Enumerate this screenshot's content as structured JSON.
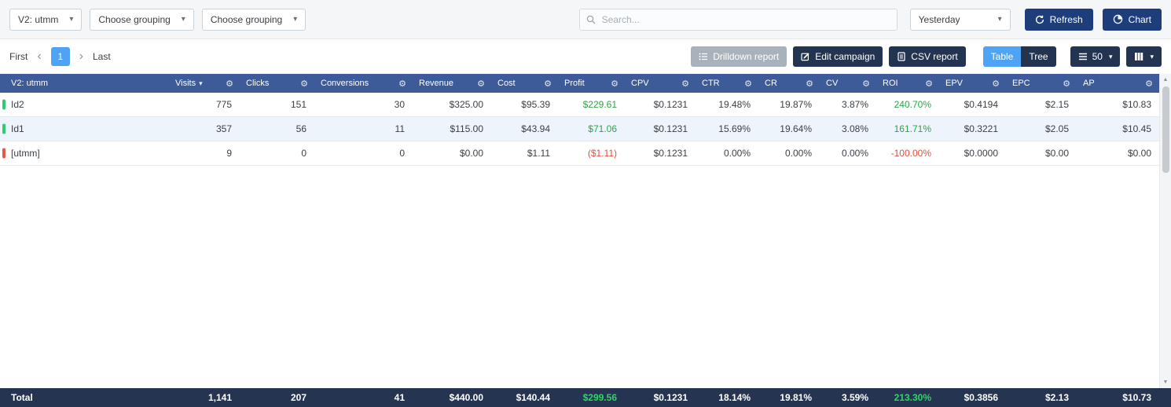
{
  "toolbar": {
    "campaign_select": "V2: utmm",
    "grouping_1": "Choose grouping",
    "grouping_2": "Choose grouping",
    "search_placeholder": "Search...",
    "date_range": "Yesterday",
    "refresh": "Refresh",
    "chart": "Chart"
  },
  "pagination": {
    "first": "First",
    "page": "1",
    "last": "Last"
  },
  "actions": {
    "drilldown": "Drilldown report",
    "edit_campaign": "Edit campaign",
    "csv_report": "CSV report",
    "table": "Table",
    "tree": "Tree",
    "rows_per_page": "50"
  },
  "icons": {
    "caret_down": "▾",
    "gear": "⚙",
    "sort_desc": "▾",
    "chevron_left": "‹",
    "chevron_right": "›",
    "scroll_up": "▲",
    "scroll_down": "▼"
  },
  "colors": {
    "header_blue": "#3d5a99",
    "total_navy": "#253450",
    "accent_blue": "#4fa3f5",
    "positive_green": "#28a745",
    "negative_red": "#e74c3c"
  },
  "table": {
    "name_header": "V2: utmm",
    "columns": [
      {
        "label": "Visits",
        "sort": true
      },
      {
        "label": "Clicks"
      },
      {
        "label": "Conversions"
      },
      {
        "label": "Revenue"
      },
      {
        "label": "Cost"
      },
      {
        "label": "Profit"
      },
      {
        "label": "CPV"
      },
      {
        "label": "CTR"
      },
      {
        "label": "CR"
      },
      {
        "label": "CV"
      },
      {
        "label": "ROI"
      },
      {
        "label": "EPV"
      },
      {
        "label": "EPC"
      },
      {
        "label": "AP"
      }
    ],
    "rows": [
      {
        "name": "Id2",
        "indicator": "green",
        "trend": "pos",
        "values": [
          "775",
          "151",
          "30",
          "$325.00",
          "$95.39",
          "$229.61",
          "$0.1231",
          "19.48%",
          "19.87%",
          "3.87%",
          "240.70%",
          "$0.4194",
          "$2.15",
          "$10.83"
        ]
      },
      {
        "name": "Id1",
        "indicator": "green",
        "trend": "pos",
        "values": [
          "357",
          "56",
          "11",
          "$115.00",
          "$43.94",
          "$71.06",
          "$0.1231",
          "15.69%",
          "19.64%",
          "3.08%",
          "161.71%",
          "$0.3221",
          "$2.05",
          "$10.45"
        ]
      },
      {
        "name": "[utmm]",
        "indicator": "red",
        "trend": "neg",
        "values": [
          "9",
          "0",
          "0",
          "$0.00",
          "$1.11",
          "($1.11)",
          "$0.1231",
          "0.00%",
          "0.00%",
          "0.00%",
          "-100.00%",
          "$0.0000",
          "$0.00",
          "$0.00"
        ]
      }
    ],
    "total": {
      "label": "Total",
      "values": [
        "1,141",
        "207",
        "41",
        "$440.00",
        "$140.44",
        "$299.56",
        "$0.1231",
        "18.14%",
        "19.81%",
        "3.59%",
        "213.30%",
        "$0.3856",
        "$2.13",
        "$10.73"
      ]
    }
  }
}
